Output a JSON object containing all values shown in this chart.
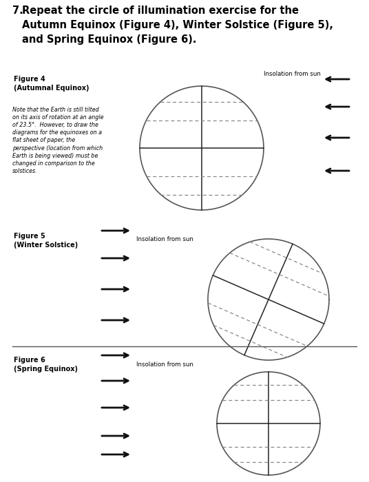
{
  "title_number": "7.",
  "title_text": " Repeat the circle of illumination exercise for the\n   Autumn Equinox (Figure 4), Winter Solstice (Figure 5),\n   and Spring Equinox (Figure 6).",
  "fig4_label": "Figure 4\n(Autumnal Equinox)",
  "fig5_label": "Figure 5\n(Winter Solstice)",
  "fig6_label": "Figure 6\n(Spring Equinox)",
  "insolation_label": "Insolation from sun",
  "note_text": "Note that the Earth is still tilted\non its axis of rotation at an angle\nof 23.5°.  However, to draw the\ndiagrams for the equinoxes on a\nflat sheet of paper, the\nperspective (location from which\nEarth is being viewed) must be\nchanged in comparison to the\nsolstices.",
  "bg_color": "#ffffff",
  "circle_color": "#555555",
  "line_color": "#222222",
  "dash_color": "#888888",
  "arrow_color": "#111111",
  "sep_color": "#555555",
  "title_fontsize": 10.5,
  "label_fontsize": 7.0,
  "note_fontsize": 5.8,
  "insol_fontsize": 6.2,
  "arrow_lw": 2.0,
  "circle_lw": 1.2,
  "line_lw": 1.1,
  "dash_lw": 0.9
}
